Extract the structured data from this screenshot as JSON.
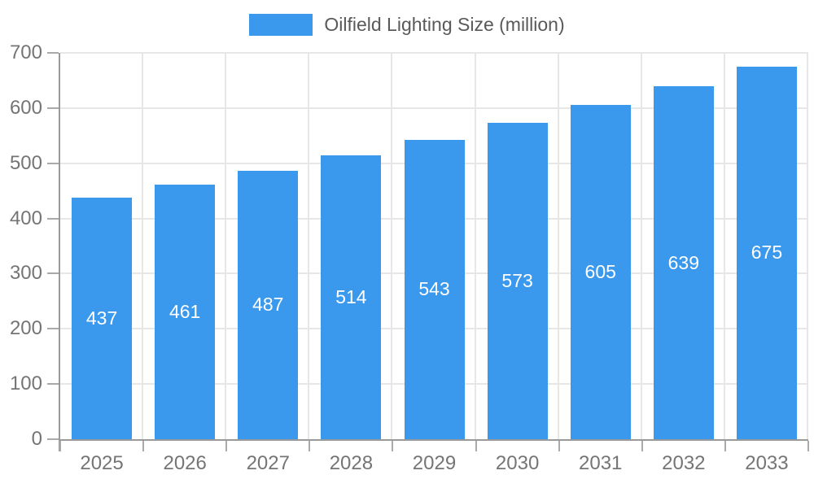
{
  "legend": {
    "label": "Oilfield Lighting Size (million)"
  },
  "chart_data": {
    "type": "bar",
    "title": "Oilfield Lighting Size (million)",
    "series_name": "Oilfield Lighting Size (million)",
    "categories": [
      "2025",
      "2026",
      "2027",
      "2028",
      "2029",
      "2030",
      "2031",
      "2032",
      "2033"
    ],
    "values": [
      437,
      461,
      487,
      514,
      543,
      573,
      605,
      639,
      675
    ],
    "xlabel": "",
    "ylabel": "",
    "ylim": [
      0,
      700
    ],
    "yticks": [
      0,
      100,
      200,
      300,
      400,
      500,
      600,
      700
    ],
    "grid": true,
    "legend_position": "top-center",
    "value_label_position": "inside-center"
  },
  "colors": {
    "bar": "#3a99ec",
    "axis_line": "#9a9a9a",
    "tick": "#aaaaaa",
    "gridline": "#e7e7e7",
    "axis_text": "#757575",
    "legend_text": "#595959",
    "value_label": "#ffffff",
    "background": "#ffffff"
  }
}
